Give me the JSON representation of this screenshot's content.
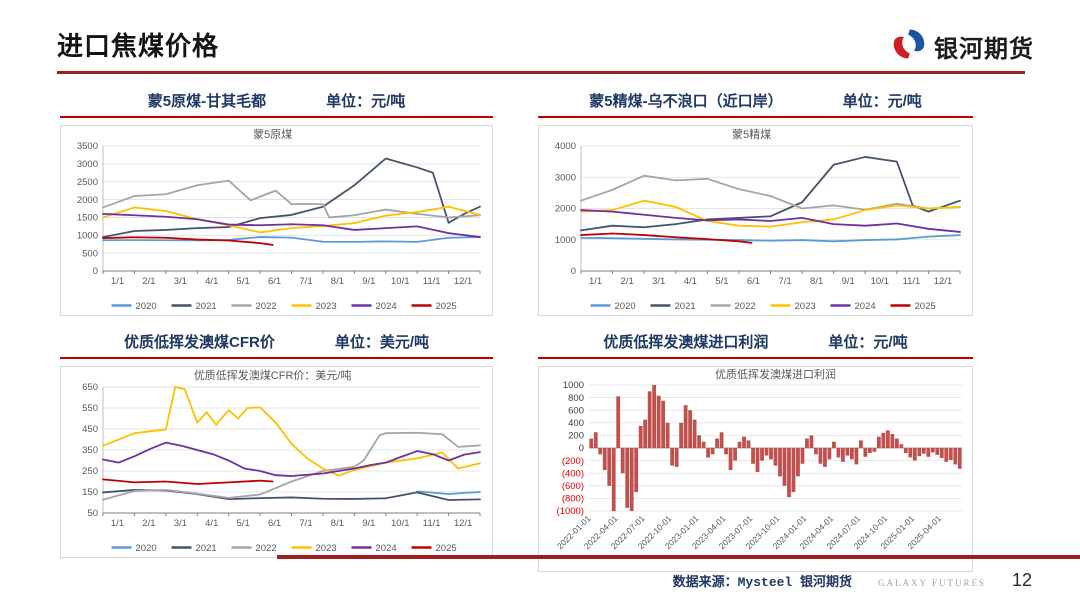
{
  "page": {
    "title": "进口焦煤价格",
    "logo_text": "银河期货",
    "footer": {
      "source": "数据来源：Mysteel 银河期货",
      "brand": "GALAXY FUTURES",
      "page_number": "12"
    }
  },
  "colors": {
    "accent_red": "#9c2020",
    "header_navy": "#1f3864",
    "section_underline": "#c00000",
    "bar_fill": "#c0504d",
    "negative_label": "#e60000",
    "series_2020": "#5b9bd5",
    "series_2021": "#44546a",
    "series_2022": "#a5a5a5",
    "series_2023": "#ffc000",
    "series_2024": "#7030a0",
    "series_2025": "#c00000"
  },
  "sections": [
    {
      "title": "蒙5原煤-甘其毛都",
      "unit": "单位：元/吨"
    },
    {
      "title": "蒙5精煤-乌不浪口（近口岸）",
      "unit": "单位：元/吨"
    },
    {
      "title": "优质低挥发澳煤CFR价",
      "unit": "单位：美元/吨"
    },
    {
      "title": "优质低挥发澳煤进口利润",
      "unit": "单位：元/吨"
    }
  ],
  "chart_data": [
    {
      "type": "line",
      "title": "蒙5原煤",
      "ylabel": "元/吨",
      "ylim": [
        0,
        3500
      ],
      "yticks": [
        0,
        500,
        1000,
        1500,
        2000,
        2500,
        3000,
        3500
      ],
      "xticks": [
        "1/1",
        "2/1",
        "3/1",
        "4/1",
        "5/1",
        "6/1",
        "7/1",
        "8/1",
        "9/1",
        "10/1",
        "11/1",
        "12/1"
      ],
      "grid": true,
      "legend_position": "bottom",
      "series": [
        {
          "name": "2020",
          "color": "#5b9bd5",
          "y": [
            860,
            865,
            860,
            858,
            870,
            950,
            935,
            820,
            815,
            830,
            815,
            930,
            950
          ]
        },
        {
          "name": "2021",
          "color": "#44546a",
          "x": [
            0,
            1,
            2,
            3,
            4,
            5,
            6,
            7,
            8,
            9,
            10,
            10.5,
            11,
            11.5,
            12
          ],
          "y": [
            950,
            1120,
            1150,
            1200,
            1230,
            1480,
            1570,
            1800,
            2400,
            3150,
            2900,
            2750,
            1350,
            1600,
            1800
          ]
        },
        {
          "name": "2022",
          "color": "#a5a5a5",
          "x": [
            0,
            1,
            2,
            3,
            4,
            4.7,
            5.5,
            6,
            6.5,
            7,
            7.2,
            8,
            9,
            10,
            11,
            12
          ],
          "y": [
            1780,
            2100,
            2150,
            2400,
            2530,
            1980,
            2250,
            1870,
            1880,
            1870,
            1500,
            1560,
            1720,
            1600,
            1500,
            1560
          ]
        },
        {
          "name": "2023",
          "color": "#ffc000",
          "y": [
            1500,
            1780,
            1680,
            1450,
            1280,
            1080,
            1200,
            1260,
            1340,
            1550,
            1650,
            1800,
            1570
          ]
        },
        {
          "name": "2024",
          "color": "#7030a0",
          "y": [
            1600,
            1560,
            1520,
            1450,
            1300,
            1280,
            1310,
            1280,
            1150,
            1200,
            1250,
            1060,
            950
          ]
        },
        {
          "name": "2025",
          "color": "#c00000",
          "x": [
            0,
            1,
            2,
            3,
            4,
            5,
            5.4
          ],
          "y": [
            920,
            945,
            930,
            880,
            855,
            780,
            730
          ]
        }
      ]
    },
    {
      "type": "line",
      "title": "蒙5精煤",
      "ylabel": "元/吨",
      "ylim": [
        0,
        4000
      ],
      "yticks": [
        0,
        1000,
        2000,
        3000,
        4000
      ],
      "xticks": [
        "1/1",
        "2/1",
        "3/1",
        "4/1",
        "5/1",
        "6/1",
        "7/1",
        "8/1",
        "9/1",
        "10/1",
        "11/1",
        "12/1"
      ],
      "grid": true,
      "legend_position": "bottom",
      "series": [
        {
          "name": "2020",
          "color": "#5b9bd5",
          "y": [
            1060,
            1050,
            1030,
            1010,
            1000,
            990,
            970,
            990,
            950,
            990,
            1010,
            1100,
            1150
          ]
        },
        {
          "name": "2021",
          "color": "#44546a",
          "x": [
            0,
            1,
            2,
            3,
            4,
            5,
            6,
            7,
            8,
            9,
            10,
            10.5,
            11,
            12
          ],
          "y": [
            1300,
            1450,
            1400,
            1500,
            1650,
            1700,
            1750,
            2200,
            3400,
            3650,
            3500,
            2100,
            1900,
            2250
          ]
        },
        {
          "name": "2022",
          "color": "#a5a5a5",
          "y": [
            2250,
            2600,
            3050,
            2900,
            2950,
            2620,
            2400,
            2000,
            2100,
            1960,
            2150,
            2000,
            2050
          ]
        },
        {
          "name": "2023",
          "color": "#ffc000",
          "y": [
            1900,
            1950,
            2250,
            2050,
            1600,
            1450,
            1420,
            1560,
            1650,
            1950,
            2100,
            2000,
            2050
          ]
        },
        {
          "name": "2024",
          "color": "#7030a0",
          "y": [
            1950,
            1900,
            1800,
            1700,
            1620,
            1650,
            1600,
            1700,
            1500,
            1450,
            1520,
            1350,
            1250
          ]
        },
        {
          "name": "2025",
          "color": "#c00000",
          "x": [
            0,
            1,
            2,
            3,
            4,
            5,
            5.4
          ],
          "y": [
            1150,
            1200,
            1150,
            1080,
            1020,
            950,
            900
          ]
        }
      ]
    },
    {
      "type": "line",
      "title": "优质低挥发澳煤CFR价：美元/吨",
      "ylabel": "美元/吨",
      "ylim": [
        50,
        650
      ],
      "yticks": [
        50,
        150,
        250,
        350,
        450,
        550,
        650
      ],
      "xticks": [
        "1/1",
        "2/1",
        "3/1",
        "4/1",
        "5/1",
        "6/1",
        "7/1",
        "8/1",
        "9/1",
        "10/1",
        "11/1",
        "12/1"
      ],
      "grid": true,
      "legend_position": "bottom",
      "series": [
        {
          "name": "2020",
          "color": "#5b9bd5",
          "x": [
            10,
            10.5,
            11,
            11.5,
            12
          ],
          "y": [
            153,
            147,
            140,
            146,
            150
          ]
        },
        {
          "name": "2021",
          "color": "#44546a",
          "y": [
            148,
            160,
            157,
            140,
            116,
            121,
            124,
            118,
            117,
            120,
            148,
            112,
            115
          ]
        },
        {
          "name": "2022",
          "color": "#a5a5a5",
          "x": [
            0,
            1,
            2,
            3,
            4,
            5,
            6,
            7,
            8,
            8.3,
            8.8,
            9,
            10,
            10.8,
            11.3,
            12
          ],
          "y": [
            113,
            155,
            160,
            142,
            122,
            138,
            200,
            250,
            270,
            300,
            420,
            430,
            432,
            425,
            365,
            372
          ]
        },
        {
          "name": "2023",
          "color": "#ffc000",
          "x": [
            0,
            1,
            2,
            2.3,
            2.6,
            3,
            3.3,
            3.6,
            4,
            4.3,
            4.6,
            5,
            5.5,
            6,
            6.5,
            7,
            7.5,
            8,
            9,
            10,
            10.8,
            11.3,
            12
          ],
          "y": [
            370,
            430,
            448,
            650,
            640,
            480,
            530,
            470,
            540,
            500,
            550,
            553,
            480,
            380,
            310,
            262,
            228,
            255,
            290,
            310,
            338,
            262,
            287
          ]
        },
        {
          "name": "2024",
          "color": "#7030a0",
          "x": [
            0,
            0.5,
            1,
            1.5,
            2,
            2.5,
            3,
            3.5,
            4,
            4.5,
            5,
            5.5,
            6,
            6.5,
            7,
            7.5,
            8,
            8.5,
            9,
            9.5,
            10,
            10.5,
            11,
            11.5,
            12
          ],
          "y": [
            305,
            290,
            320,
            355,
            385,
            370,
            350,
            330,
            300,
            262,
            250,
            230,
            226,
            232,
            238,
            250,
            262,
            278,
            290,
            318,
            345,
            330,
            300,
            328,
            340
          ]
        },
        {
          "name": "2025",
          "color": "#c00000",
          "x": [
            0,
            1,
            2,
            3,
            4,
            5,
            5.4
          ],
          "y": [
            210,
            196,
            200,
            188,
            196,
            204,
            200
          ]
        }
      ]
    },
    {
      "type": "bar",
      "title": "优质低挥发澳煤进口利润",
      "ylabel": "元/吨",
      "ylim": [
        -1000,
        1000
      ],
      "yticks": [
        1000,
        800,
        600,
        400,
        200,
        0,
        -200,
        -400,
        -600,
        -800,
        -1000
      ],
      "bar_color": "#c0504d",
      "interval": "semi-monthly, 2022-01 to 2025-06",
      "xticks": [
        "2022-01-01",
        "2022-04-01",
        "2022-07-01",
        "2022-10-01",
        "2023-01-01",
        "2023-04-01",
        "2023-07-01",
        "2023-10-01",
        "2024-01-01",
        "2024-04-01",
        "2024-07-01",
        "2024-10-01",
        "2025-01-01",
        "2025-04-01"
      ],
      "xtick_every_n_bars": 6,
      "values": [
        150,
        250,
        -100,
        -350,
        -600,
        -1000,
        820,
        -400,
        -950,
        -1000,
        -700,
        350,
        450,
        900,
        1000,
        830,
        750,
        400,
        -280,
        -300,
        400,
        680,
        600,
        450,
        200,
        100,
        -150,
        -100,
        150,
        250,
        -100,
        -350,
        -200,
        100,
        180,
        120,
        -250,
        -380,
        -200,
        -120,
        -180,
        -280,
        -450,
        -600,
        -780,
        -700,
        -450,
        -250,
        150,
        200,
        -100,
        -250,
        -300,
        -180,
        100,
        -150,
        -220,
        -120,
        -180,
        -260,
        120,
        -140,
        -80,
        -60,
        180,
        240,
        280,
        220,
        150,
        60,
        -80,
        -150,
        -200,
        -130,
        -90,
        -140,
        -70,
        -110,
        -160,
        -220,
        -190,
        -260,
        -330
      ]
    }
  ]
}
